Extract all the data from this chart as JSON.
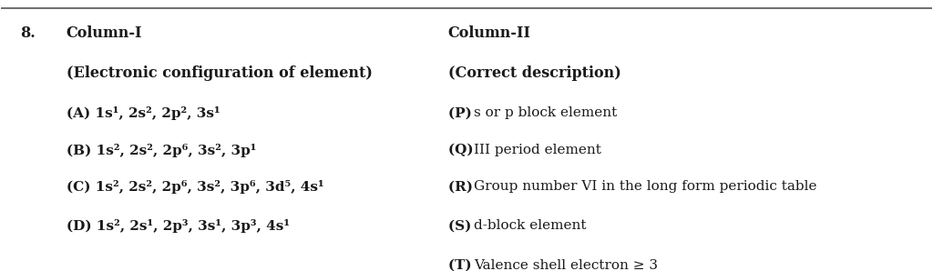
{
  "question_num": "8.",
  "col1_header": "Column-I",
  "col2_header": "Column-II",
  "col1_subheader": "(Electronic configuration of element)",
  "col2_subheader": "(Correct description)",
  "col1_items": [
    "(A) 1s¹, 2s², 2p², 3s¹",
    "(B) 1s², 2s², 2p⁶, 3s², 3p¹",
    "(C) 1s², 2s², 2p⁶, 3s², 3p⁶, 3d⁵, 4s¹",
    "(D) 1s², 2s¹, 2p³, 3s¹, 3p³, 4s¹"
  ],
  "col2_items": [
    "(P) s or p block element",
    "(Q) III period element",
    "(R) Group number VI in the long form periodic table",
    "(S) d-block element",
    "(T) Valence shell electron ≥ 3"
  ],
  "bg_color": "#ffffff",
  "text_color": "#1a1a1a",
  "font_size": 11,
  "header_font_size": 11.5,
  "top_line_color": "#555555",
  "figsize": [
    10.24,
    2.98
  ],
  "dpi": 100
}
